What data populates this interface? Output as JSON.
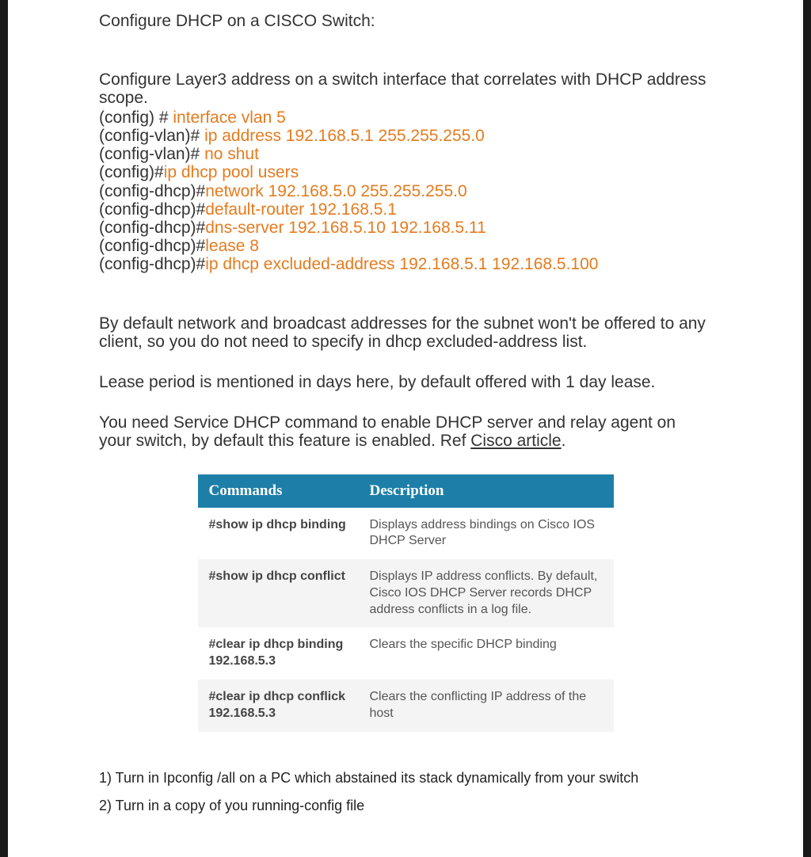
{
  "title": "Configure DHCP on a CISCO Switch:",
  "intro": "Configure Layer3 address on a switch interface that correlates with DHCP address scope.",
  "config": [
    {
      "prompt": "(config) # ",
      "cmd": "interface vlan 5"
    },
    {
      "prompt": "(config-vlan)# ",
      "cmd": "ip address 192.168.5.1 255.255.255.0"
    },
    {
      "prompt": "(config-vlan)# ",
      "cmd": "no shut"
    },
    {
      "prompt": "(config)#",
      "cmd": "ip dhcp pool users"
    },
    {
      "prompt": "(config-dhcp)#",
      "cmd": "network 192.168.5.0 255.255.255.0"
    },
    {
      "prompt": "(config-dhcp)#",
      "cmd": "default-router 192.168.5.1"
    },
    {
      "prompt": "(config-dhcp)#",
      "cmd": "dns-server 192.168.5.10 192.168.5.11"
    },
    {
      "prompt": "(config-dhcp)#",
      "cmd": "lease 8"
    },
    {
      "prompt": "(config-dhcp)#",
      "cmd": "ip dhcp excluded-address 192.168.5.1 192.168.5.100"
    }
  ],
  "para1": "By default network and broadcast addresses for the subnet won't be offered to any client, so you do not need to specify in dhcp excluded-address list.",
  "para2": "Lease period is mentioned in days here, by default offered with 1 day lease.",
  "para3_pre": "You need Service DHCP command to enable DHCP server and relay agent on your switch, by default this feature is enabled. Ref ",
  "para3_link": "Cisco article",
  "para3_post": ".",
  "table": {
    "header_bg": "#1d7fa8",
    "columns": [
      "Commands",
      "Description"
    ],
    "rows": [
      {
        "cmd": "#show ip dhcp binding",
        "desc": "Displays address bindings on Cisco IOS DHCP Server"
      },
      {
        "cmd": "#show ip dhcp conflict",
        "desc": "Displays IP address conflicts. By default, Cisco IOS DHCP Server records DHCP address conflicts in a log file."
      },
      {
        "cmd": "#clear ip dhcp binding 192.168.5.3",
        "desc": "Clears the specific DHCP binding"
      },
      {
        "cmd": "#clear ip dhcp conflick 192.168.5.3",
        "desc": "Clears the conflicting IP address of the host"
      }
    ]
  },
  "instructions": [
    "1) Turn in Ipconfig /all on a PC which abstained its stack dynamically from your switch",
    "2) Turn in a copy of you running-config file"
  ],
  "colors": {
    "command_orange": "#e57b1e",
    "background": "#1a1a1a",
    "page": "#ffffff"
  }
}
